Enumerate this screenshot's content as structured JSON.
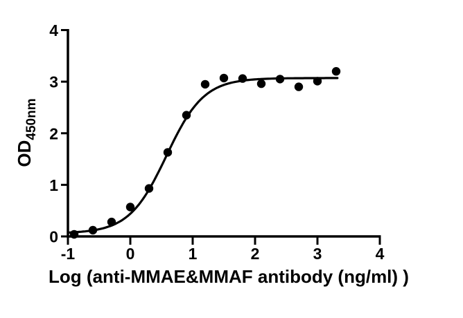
{
  "figure": {
    "background": "#ffffff",
    "foreground": "#000000"
  },
  "chart_data": {
    "type": "scatter",
    "title": "",
    "xlabel": "Log (anti-MMAE&MMAF antibody (ng/ml) )",
    "ylabel_main": "OD",
    "ylabel_sub": "450nm",
    "xlim": [
      -1,
      4
    ],
    "ylim": [
      0,
      4
    ],
    "x_ticks": [
      "-1",
      "0",
      "1",
      "2",
      "3",
      "4"
    ],
    "y_ticks": [
      "0",
      "1",
      "2",
      "3",
      "4"
    ],
    "grid": false,
    "legend": "none",
    "marker": {
      "shape": "circle",
      "color": "#000000",
      "radius": 6.2
    },
    "points": [
      {
        "x": -0.9,
        "y": 0.04
      },
      {
        "x": -0.6,
        "y": 0.12
      },
      {
        "x": -0.3,
        "y": 0.28
      },
      {
        "x": 0.0,
        "y": 0.57
      },
      {
        "x": 0.3,
        "y": 0.93
      },
      {
        "x": 0.6,
        "y": 1.63
      },
      {
        "x": 0.9,
        "y": 2.35
      },
      {
        "x": 1.2,
        "y": 2.95
      },
      {
        "x": 1.5,
        "y": 3.07
      },
      {
        "x": 1.8,
        "y": 3.06
      },
      {
        "x": 2.1,
        "y": 2.96
      },
      {
        "x": 2.4,
        "y": 3.05
      },
      {
        "x": 2.7,
        "y": 2.9
      },
      {
        "x": 3.0,
        "y": 3.01
      },
      {
        "x": 3.3,
        "y": 3.2
      }
    ],
    "fit_curve": {
      "model": "4PL sigmoid",
      "bottom": 0.06,
      "top": 3.07,
      "logEC50": 0.58,
      "hill": 1.45,
      "x_start": -1.0,
      "x_end": 3.32,
      "color": "#000000"
    }
  }
}
